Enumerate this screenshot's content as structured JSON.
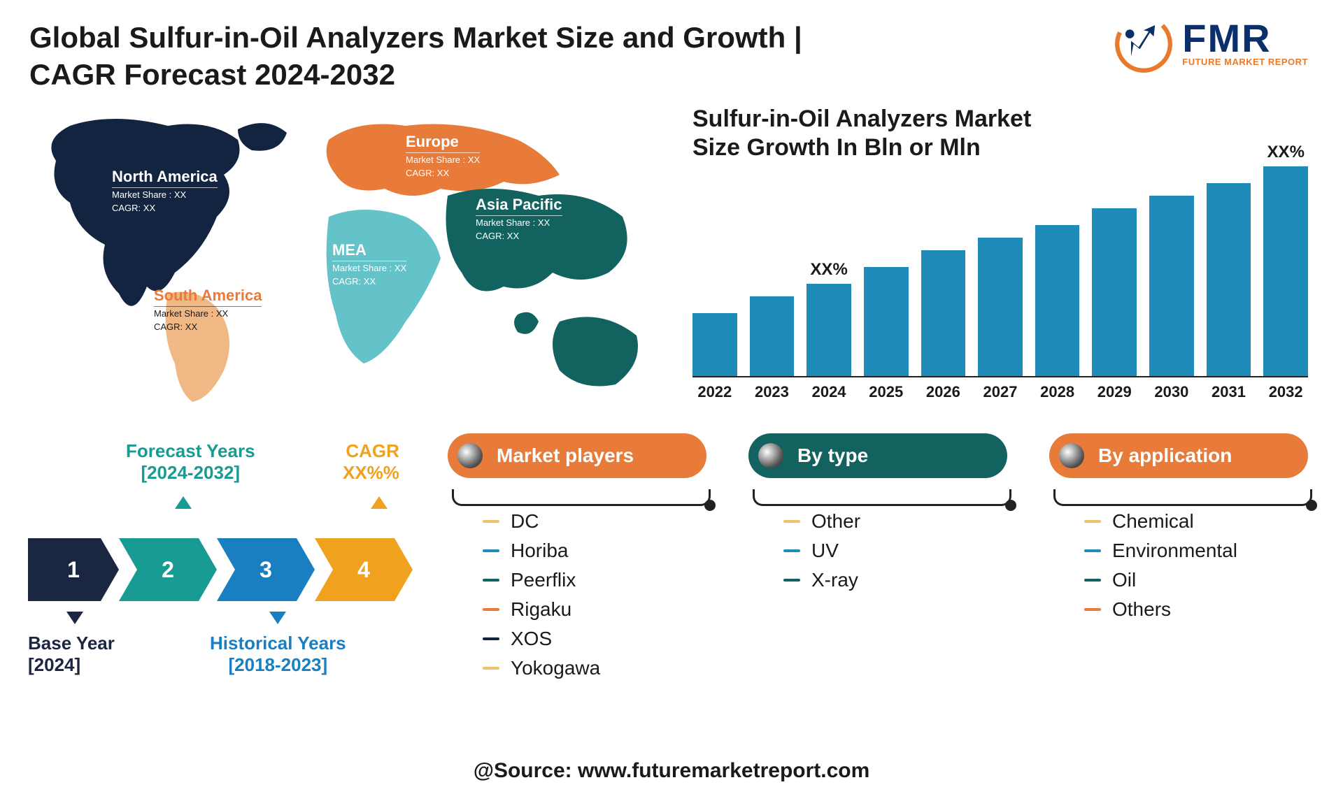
{
  "title": "Global Sulfur-in-Oil Analyzers  Market Size and Growth | CAGR Forecast  2024-2032",
  "logo": {
    "fmr": "FMR",
    "sub": "FUTURE MARKET REPORT",
    "accent": "#e77a2b",
    "text_color": "#0b2f6b"
  },
  "map": {
    "regions": [
      {
        "name": "North America",
        "share": "Market Share : XX",
        "cagr": "CAGR: XX",
        "color": "#12243f"
      },
      {
        "name": "South America",
        "share": "Market Share : XX",
        "cagr": "CAGR: XX",
        "color": "#f0b884"
      },
      {
        "name": "Europe",
        "share": "Market Share : XX",
        "cagr": "CAGR: XX",
        "color": "#e87b3a"
      },
      {
        "name": "MEA",
        "share": "Market Share : XX",
        "cagr": "CAGR: XX",
        "color": "#63c3c9"
      },
      {
        "name": "Asia Pacific",
        "share": "Market Share : XX",
        "cagr": "CAGR: XX",
        "color": "#12635f"
      }
    ]
  },
  "chart": {
    "title": "Sulfur-in-Oil Analyzers  Market Size Growth In Bln or Mln",
    "bar_color": "#1e8bb8",
    "axis_color": "#222222",
    "label_fontsize": 22,
    "years": [
      "2022",
      "2023",
      "2024",
      "2025",
      "2026",
      "2027",
      "2028",
      "2029",
      "2030",
      "2031",
      "2032"
    ],
    "heights_pct": [
      30,
      38,
      44,
      52,
      60,
      66,
      72,
      80,
      86,
      92,
      100
    ],
    "top_labels": {
      "2": "XX%",
      "10": "XX%"
    }
  },
  "timeline": {
    "labels": {
      "base": {
        "text1": "Base Year",
        "text2": "[2024]",
        "color": "#1b2640"
      },
      "forecast": {
        "text1": "Forecast Years",
        "text2": "[2024-2032]",
        "color": "#189b93"
      },
      "hist": {
        "text1": "Historical Years",
        "text2": "[2018-2023]",
        "color": "#1a7fc1"
      },
      "cagr": {
        "text1": "CAGR",
        "text2": "XX%%",
        "color": "#f0a11e"
      }
    },
    "steps": [
      {
        "num": "1",
        "color": "#1b2640"
      },
      {
        "num": "2",
        "color": "#189b93"
      },
      {
        "num": "3",
        "color": "#1a7fc1"
      },
      {
        "num": "4",
        "color": "#f0a11e"
      }
    ]
  },
  "pills": [
    {
      "title": "Market players",
      "bg": "#e87b3a",
      "items": [
        {
          "label": "DC",
          "color": "#f0c06a"
        },
        {
          "label": "Horiba",
          "color": "#1e8bb8"
        },
        {
          "label": "Peerflix",
          "color": "#12635f"
        },
        {
          "label": "Rigaku",
          "color": "#e87b3a"
        },
        {
          "label": "XOS",
          "color": "#12243f"
        },
        {
          "label": "Yokogawa",
          "color": "#f0c06a"
        }
      ]
    },
    {
      "title": "By type",
      "bg": "#12635f",
      "items": [
        {
          "label": "Other",
          "color": "#f0c06a"
        },
        {
          "label": "UV",
          "color": "#1e8bb8"
        },
        {
          "label": "X-ray",
          "color": "#12635f"
        }
      ]
    },
    {
      "title": "By application",
      "bg": "#e87b3a",
      "items": [
        {
          "label": "Chemical",
          "color": "#f0c06a"
        },
        {
          "label": "Environmental",
          "color": "#1e8bb8"
        },
        {
          "label": "Oil",
          "color": "#12635f"
        },
        {
          "label": "Others",
          "color": "#e87b3a"
        }
      ]
    }
  ],
  "source": "@Source: www.futuremarketreport.com"
}
